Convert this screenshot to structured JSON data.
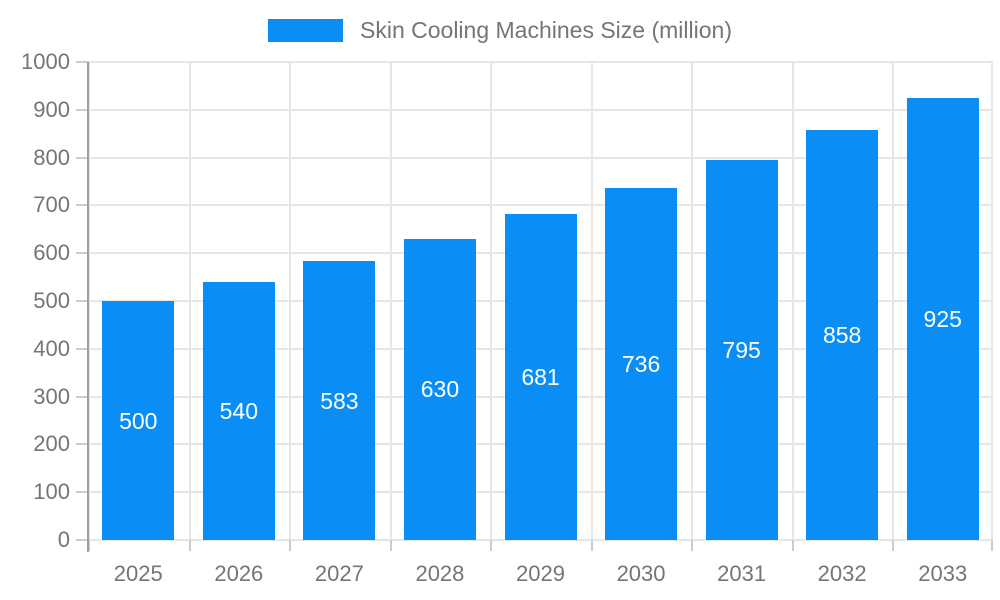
{
  "legend": {
    "label": "Skin Cooling Machines Size (million)"
  },
  "colors": {
    "bar": "#0a8ef5",
    "grid": "#e6e6e6",
    "axis_line": "#9e9e9e",
    "tick": "#cccccc",
    "axis_text": "#757575",
    "bar_label_text": "#ffffff",
    "background": "#ffffff"
  },
  "chart_data": {
    "type": "bar",
    "title": "Skin Cooling Machines Size (million)",
    "categories": [
      "2025",
      "2026",
      "2027",
      "2028",
      "2029",
      "2030",
      "2031",
      "2032",
      "2033"
    ],
    "values": [
      500,
      540,
      583,
      630,
      681,
      736,
      795,
      858,
      925
    ],
    "xlabel": "",
    "ylabel": "",
    "ylim": [
      0,
      1000
    ],
    "ytick_step": 100,
    "yticks": [
      0,
      100,
      200,
      300,
      400,
      500,
      600,
      700,
      800,
      900,
      1000
    ],
    "grid": true,
    "legend_position": "top",
    "bar_labels_inside": true
  }
}
